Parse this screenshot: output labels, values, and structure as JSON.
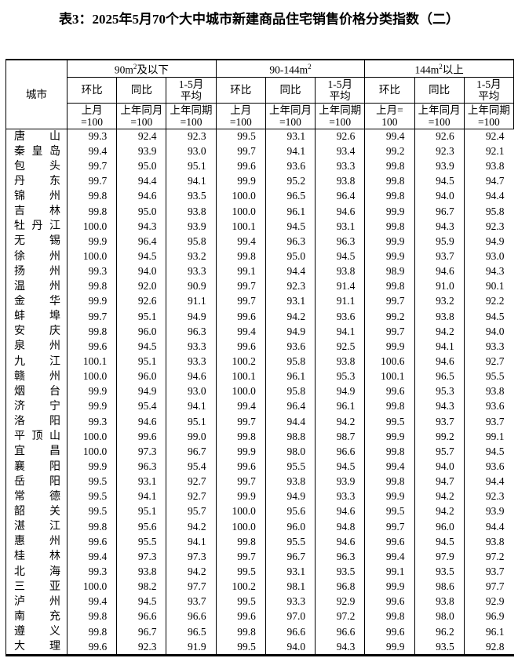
{
  "title": "表3：2025年5月70个大中城市新建商品住宅销售价格分类指数（二）",
  "table": {
    "city_header": "城市",
    "groups": [
      {
        "pre": "90m",
        "sup": "2",
        "post": "及以下"
      },
      {
        "pre": "90-144m",
        "sup": "2",
        "post": ""
      },
      {
        "pre": "144m",
        "sup": "2",
        "post": "以上"
      }
    ],
    "metric_headers": [
      "环比",
      "同比",
      "1-5月\n平均"
    ],
    "base_headers": [
      "上月\n=100",
      "上年同月\n=100",
      "上年同期\n=100",
      "上月\n=100",
      "上年同月\n=100",
      "上年同期\n=100",
      "上月=\n100",
      "上年同月\n=100",
      "上年同期\n=100"
    ],
    "rows": [
      {
        "city": "唐山",
        "values": [
          "99.3",
          "92.4",
          "92.3",
          "99.5",
          "93.1",
          "92.6",
          "99.4",
          "92.6",
          "92.4"
        ]
      },
      {
        "city": "秦皇岛",
        "values": [
          "99.4",
          "93.9",
          "93.0",
          "99.7",
          "94.1",
          "93.4",
          "99.2",
          "92.3",
          "92.1"
        ]
      },
      {
        "city": "包头",
        "values": [
          "99.7",
          "95.0",
          "95.1",
          "99.6",
          "93.6",
          "93.3",
          "99.8",
          "93.9",
          "93.8"
        ]
      },
      {
        "city": "丹东",
        "values": [
          "99.7",
          "94.4",
          "94.1",
          "99.9",
          "95.2",
          "93.8",
          "99.8",
          "94.5",
          "94.7"
        ]
      },
      {
        "city": "锦州",
        "values": [
          "99.8",
          "94.6",
          "93.5",
          "100.0",
          "96.5",
          "96.4",
          "99.8",
          "94.0",
          "94.4"
        ]
      },
      {
        "city": "吉林",
        "values": [
          "99.8",
          "95.0",
          "93.8",
          "100.0",
          "96.1",
          "94.6",
          "99.9",
          "96.7",
          "95.8"
        ]
      },
      {
        "city": "牡丹江",
        "values": [
          "100.0",
          "94.3",
          "93.9",
          "100.1",
          "94.5",
          "93.1",
          "99.8",
          "94.3",
          "92.3"
        ]
      },
      {
        "city": "无锡",
        "values": [
          "99.9",
          "96.4",
          "95.8",
          "99.4",
          "96.3",
          "96.3",
          "99.9",
          "95.9",
          "94.9"
        ]
      },
      {
        "city": "徐州",
        "values": [
          "100.0",
          "94.5",
          "93.2",
          "99.8",
          "95.0",
          "94.5",
          "99.9",
          "93.7",
          "93.0"
        ]
      },
      {
        "city": "扬州",
        "values": [
          "99.3",
          "94.0",
          "93.3",
          "99.1",
          "94.4",
          "93.8",
          "98.9",
          "94.6",
          "94.3"
        ]
      },
      {
        "city": "温州",
        "values": [
          "99.8",
          "92.0",
          "90.9",
          "99.7",
          "92.3",
          "91.4",
          "99.8",
          "91.0",
          "90.1"
        ]
      },
      {
        "city": "金华",
        "values": [
          "99.9",
          "92.6",
          "91.1",
          "99.7",
          "93.1",
          "91.1",
          "99.7",
          "93.2",
          "92.2"
        ]
      },
      {
        "city": "蚌埠",
        "values": [
          "99.7",
          "95.1",
          "94.9",
          "99.6",
          "94.2",
          "93.6",
          "99.2",
          "93.8",
          "94.5"
        ]
      },
      {
        "city": "安庆",
        "values": [
          "99.8",
          "96.0",
          "96.3",
          "99.4",
          "94.9",
          "94.1",
          "99.7",
          "94.2",
          "94.0"
        ]
      },
      {
        "city": "泉州",
        "values": [
          "99.6",
          "94.5",
          "93.3",
          "99.6",
          "93.6",
          "92.5",
          "99.9",
          "94.1",
          "93.3"
        ]
      },
      {
        "city": "九江",
        "values": [
          "100.1",
          "95.1",
          "93.3",
          "100.2",
          "95.8",
          "93.8",
          "100.6",
          "94.6",
          "92.7"
        ]
      },
      {
        "city": "赣州",
        "values": [
          "100.0",
          "96.0",
          "94.6",
          "100.1",
          "96.1",
          "95.3",
          "100.1",
          "96.5",
          "95.5"
        ]
      },
      {
        "city": "烟台",
        "values": [
          "99.9",
          "94.9",
          "93.0",
          "100.0",
          "95.8",
          "94.9",
          "99.6",
          "95.3",
          "93.8"
        ]
      },
      {
        "city": "济宁",
        "values": [
          "99.9",
          "95.4",
          "94.1",
          "99.4",
          "96.4",
          "96.1",
          "99.8",
          "94.3",
          "93.6"
        ]
      },
      {
        "city": "洛阳",
        "values": [
          "99.3",
          "94.6",
          "95.1",
          "99.7",
          "94.4",
          "94.2",
          "99.5",
          "93.7",
          "93.7"
        ]
      },
      {
        "city": "平顶山",
        "values": [
          "100.0",
          "99.6",
          "99.0",
          "99.8",
          "98.8",
          "98.7",
          "99.9",
          "99.2",
          "99.1"
        ]
      },
      {
        "city": "宜昌",
        "values": [
          "100.0",
          "97.3",
          "96.7",
          "99.9",
          "98.0",
          "96.6",
          "99.8",
          "95.7",
          "94.5"
        ]
      },
      {
        "city": "襄阳",
        "values": [
          "99.9",
          "96.3",
          "95.4",
          "99.6",
          "95.5",
          "94.5",
          "99.4",
          "94.0",
          "93.6"
        ]
      },
      {
        "city": "岳阳",
        "values": [
          "99.5",
          "93.1",
          "92.7",
          "99.7",
          "93.8",
          "93.9",
          "99.8",
          "94.7",
          "94.4"
        ]
      },
      {
        "city": "常德",
        "values": [
          "99.5",
          "94.1",
          "92.7",
          "99.9",
          "94.9",
          "93.3",
          "99.9",
          "94.2",
          "92.3"
        ]
      },
      {
        "city": "韶关",
        "values": [
          "99.5",
          "95.1",
          "95.7",
          "100.0",
          "95.6",
          "94.6",
          "99.5",
          "94.2",
          "93.9"
        ]
      },
      {
        "city": "湛江",
        "values": [
          "99.8",
          "95.6",
          "94.2",
          "100.0",
          "96.0",
          "94.8",
          "99.7",
          "96.0",
          "94.4"
        ]
      },
      {
        "city": "惠州",
        "values": [
          "99.6",
          "95.5",
          "94.1",
          "99.8",
          "95.5",
          "94.6",
          "99.6",
          "94.5",
          "93.8"
        ]
      },
      {
        "city": "桂林",
        "values": [
          "99.4",
          "97.3",
          "97.3",
          "99.7",
          "96.7",
          "96.3",
          "99.4",
          "97.9",
          "97.2"
        ]
      },
      {
        "city": "北海",
        "values": [
          "99.3",
          "93.8",
          "94.2",
          "99.5",
          "93.1",
          "93.5",
          "99.1",
          "93.5",
          "93.7"
        ]
      },
      {
        "city": "三亚",
        "values": [
          "100.0",
          "98.2",
          "97.7",
          "100.2",
          "98.1",
          "96.8",
          "99.9",
          "98.6",
          "97.7"
        ]
      },
      {
        "city": "泸州",
        "values": [
          "99.4",
          "94.5",
          "93.7",
          "99.5",
          "93.3",
          "92.9",
          "99.6",
          "93.8",
          "92.9"
        ]
      },
      {
        "city": "南充",
        "values": [
          "99.8",
          "96.6",
          "96.6",
          "99.6",
          "97.0",
          "97.2",
          "99.8",
          "98.0",
          "96.9"
        ]
      },
      {
        "city": "遵义",
        "values": [
          "99.8",
          "96.7",
          "96.5",
          "99.8",
          "96.6",
          "96.6",
          "99.6",
          "96.2",
          "96.1"
        ]
      },
      {
        "city": "大理",
        "values": [
          "99.6",
          "92.3",
          "91.9",
          "99.5",
          "94.0",
          "94.3",
          "99.9",
          "93.5",
          "92.8"
        ]
      }
    ]
  }
}
